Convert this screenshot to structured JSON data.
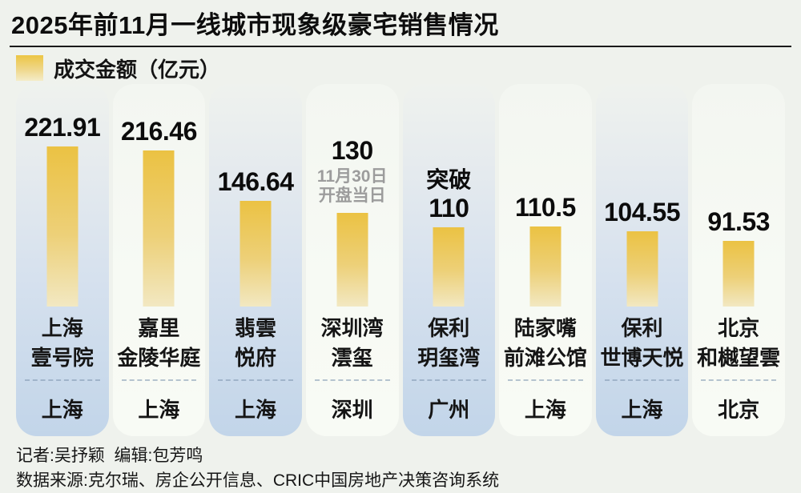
{
  "title": "2025年前11月一线城市现象级豪宅销售情况",
  "legend": {
    "label": "成交金额（亿元）"
  },
  "chart_data": {
    "type": "bar",
    "title": "2025年前11月一线城市现象级豪宅销售情况",
    "ylabel": "成交金额（亿元）",
    "unit": "亿元",
    "categories": [
      "上海壹号院",
      "嘉里金陵华庭",
      "翡雲悦府",
      "深圳湾澐玺",
      "保利玥玺湾",
      "陆家嘴前滩公馆",
      "保利世博天悦",
      "北京和樾望雲"
    ],
    "values": [
      221.91,
      216.46,
      146.64,
      130,
      110,
      110.5,
      104.55,
      91.53
    ],
    "ylim": [
      0,
      221.91
    ],
    "grid": false,
    "bars": [
      {
        "name_lines": [
          "上海",
          "壹号院"
        ],
        "city": "上海",
        "value": 221.91,
        "value_label": "221.91",
        "prefix": null,
        "note_lines": null,
        "band": "blue"
      },
      {
        "name_lines": [
          "嘉里",
          "金陵华庭"
        ],
        "city": "上海",
        "value": 216.46,
        "value_label": "216.46",
        "prefix": null,
        "note_lines": null,
        "band": "white"
      },
      {
        "name_lines": [
          "翡雲",
          "悦府"
        ],
        "city": "上海",
        "value": 146.64,
        "value_label": "146.64",
        "prefix": null,
        "note_lines": null,
        "band": "blue"
      },
      {
        "name_lines": [
          "深圳湾",
          "澐玺"
        ],
        "city": "深圳",
        "value": 130,
        "value_label": "130",
        "prefix": null,
        "note_lines": [
          "11月30日",
          "开盘当日"
        ],
        "band": "white"
      },
      {
        "name_lines": [
          "保利",
          "玥玺湾"
        ],
        "city": "广州",
        "value": 110,
        "value_label": "110",
        "prefix": "突破",
        "note_lines": null,
        "band": "blue"
      },
      {
        "name_lines": [
          "陆家嘴",
          "前滩公馆"
        ],
        "city": "上海",
        "value": 110.5,
        "value_label": "110.5",
        "prefix": null,
        "note_lines": null,
        "band": "white"
      },
      {
        "name_lines": [
          "保利",
          "世博天悦"
        ],
        "city": "上海",
        "value": 104.55,
        "value_label": "104.55",
        "prefix": null,
        "note_lines": null,
        "band": "blue"
      },
      {
        "name_lines": [
          "北京",
          "和樾望雲"
        ],
        "city": "北京",
        "value": 91.53,
        "value_label": "91.53",
        "prefix": null,
        "note_lines": null,
        "band": "white"
      }
    ]
  },
  "footer": {
    "credits": "记者:吴抒颖  编辑:包芳鸣",
    "source": "数据来源:克尔瑞、房企公开信息、CRIC中国房地产决策咨询系统"
  },
  "colors": {
    "background": "#eff2ed",
    "bar_top": "#ebc243",
    "bar_bottom": "#f2e8c2",
    "band_blue_bottom": "#c2d5e9",
    "band_white": "#f8fbf5",
    "note_gray": "#9c9c9c",
    "text": "#111111"
  }
}
